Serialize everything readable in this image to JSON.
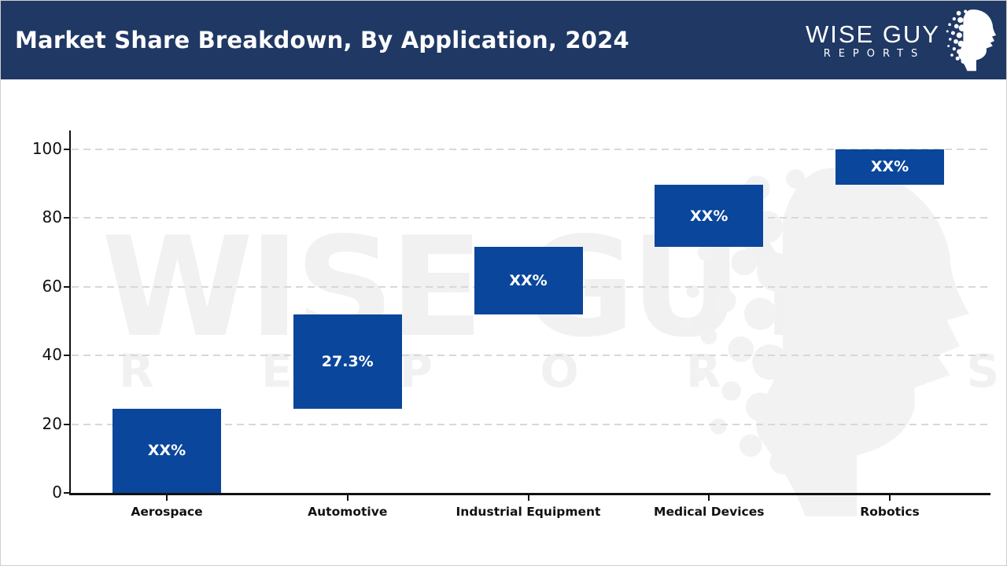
{
  "header": {
    "title": "Market Share Breakdown, By Application, 2024",
    "logo": {
      "brand": "WISE GUY",
      "sub": "REPORTS"
    }
  },
  "watermark": {
    "brand": "WISE GUY",
    "sub": "R E P O R T S"
  },
  "chart_data": {
    "type": "bar",
    "variant": "floating-segment-waterfall",
    "title": "Market Share Breakdown, By Application, 2024",
    "categories": [
      "Aerospace",
      "Automotive",
      "Industrial Equipment",
      "Medical Devices",
      "Robotics"
    ],
    "series": [
      {
        "name": "Market share (%)",
        "segments": [
          {
            "category": "Aerospace",
            "start": 0,
            "end": 24.5,
            "label": "XX%"
          },
          {
            "category": "Automotive",
            "start": 24.5,
            "end": 51.8,
            "label": "27.3%"
          },
          {
            "category": "Industrial Equipment",
            "start": 51.8,
            "end": 71.5,
            "label": "XX%"
          },
          {
            "category": "Medical Devices",
            "start": 71.5,
            "end": 89.5,
            "label": "XX%"
          },
          {
            "category": "Robotics",
            "start": 89.5,
            "end": 100,
            "label": "XX%"
          }
        ]
      }
    ],
    "ylim": [
      0,
      100
    ],
    "yticks": [
      0,
      20,
      40,
      60,
      80,
      100
    ],
    "grid": {
      "horizontal": true,
      "style": "dashed",
      "color": "#d8d8d8"
    },
    "legend": "none",
    "colors": {
      "bar": "#0a469b",
      "bar_label": "#ffffff",
      "axis": "#111111",
      "header_bg": "#203864",
      "watermark": "#f1f1f1"
    }
  }
}
